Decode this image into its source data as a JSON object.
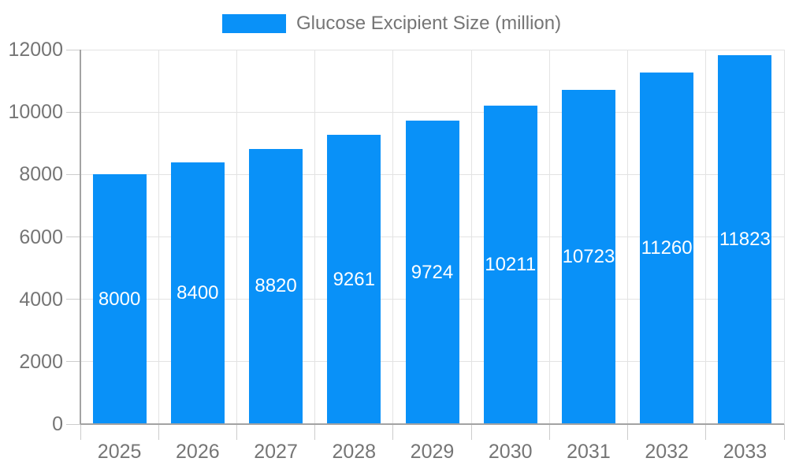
{
  "legend": {
    "label": "Glucose Excipient Size (million)"
  },
  "chart_data": {
    "type": "bar",
    "title": "Glucose Excipient Size (million)",
    "series_name": "Glucose Excipient Size (million)",
    "categories": [
      "2025",
      "2026",
      "2027",
      "2028",
      "2029",
      "2030",
      "2031",
      "2032",
      "2033"
    ],
    "values": [
      8000,
      8400,
      8820,
      9261,
      9724,
      10211,
      10723,
      11260,
      11823
    ],
    "value_labels_visible": true,
    "value_label_position": "inside-center",
    "xlabel": "",
    "ylabel": "",
    "ylim": [
      0,
      12000
    ],
    "yticks": [
      0,
      2000,
      4000,
      6000,
      8000,
      10000,
      12000
    ],
    "grid": true,
    "legend_position": "top"
  },
  "colors": {
    "bar": "#0991F8",
    "grid": "#e3e3e3",
    "tick": "#cccccc",
    "axis": "#a3a3a3",
    "text": "#757575",
    "value_text": "#ffffff",
    "background": "#ffffff"
  }
}
